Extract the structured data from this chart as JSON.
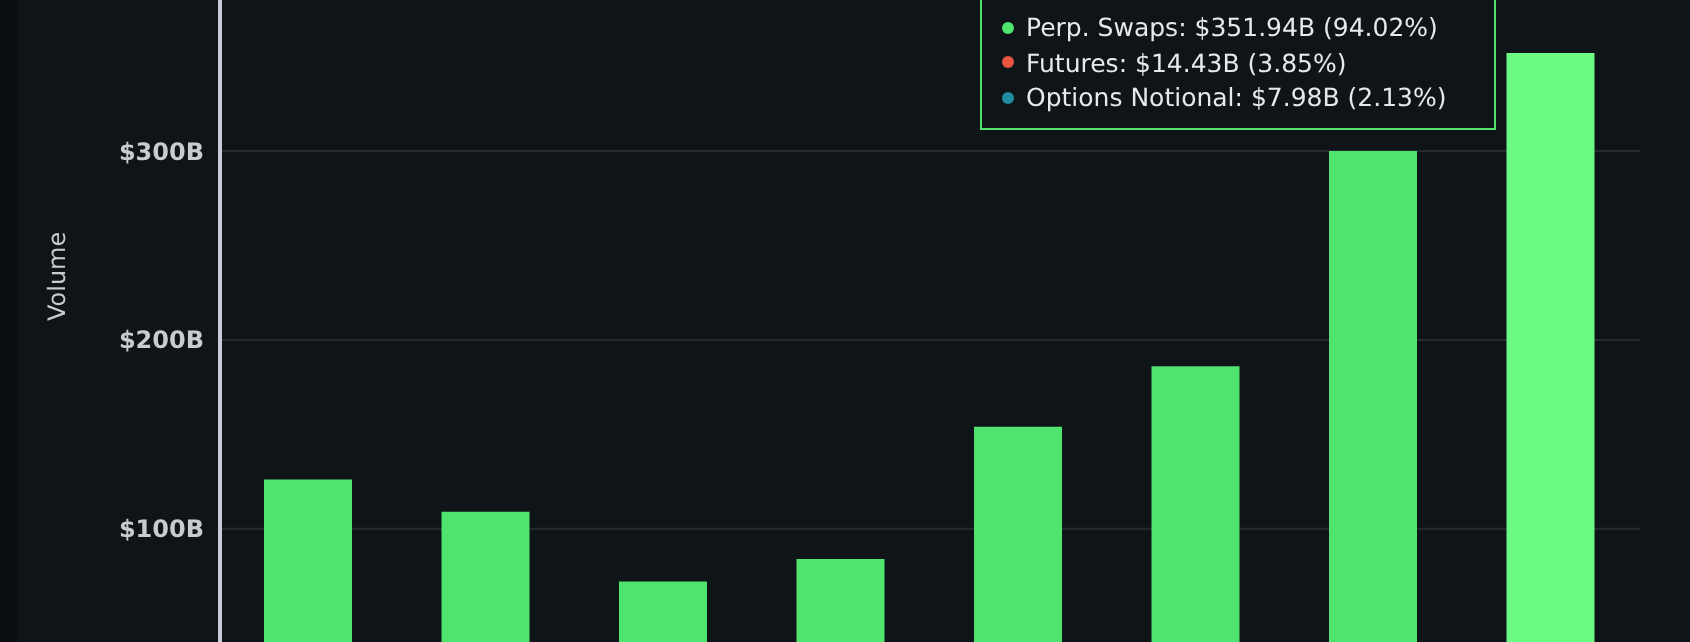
{
  "chart_data": {
    "type": "bar",
    "ylabel": "Volume",
    "categories": [
      null,
      null,
      null,
      null,
      null,
      null,
      null,
      null
    ],
    "values": [
      126,
      109,
      72,
      84,
      154,
      186,
      300,
      351.94
    ],
    "colors": [
      "#4fe36f",
      "#4fe36f",
      "#4fe36f",
      "#4fe36f",
      "#4fe36f",
      "#4fe36f",
      "#4fe36f",
      "#6bfb85"
    ],
    "ylim": [
      40,
      380
    ],
    "yticks": [
      {
        "value": 100,
        "label": "$100B"
      },
      {
        "value": 200,
        "label": "$200B"
      },
      {
        "value": 300,
        "label": "$300B"
      }
    ],
    "grid": "y",
    "legend": false,
    "annotations": [
      "Perp. Swaps: $351.94B (94.02%)",
      "Futures: $14.43B (3.85%)",
      "Options Notional: $7.98B (2.13%)"
    ]
  }
}
